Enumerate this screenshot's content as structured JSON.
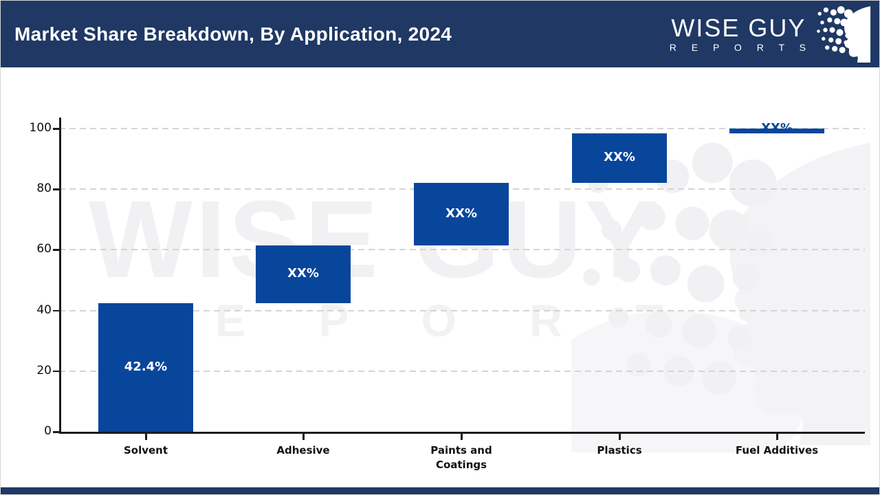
{
  "header": {
    "title": "Market Share Breakdown, By Application, 2024",
    "logo": {
      "line1": "WISE GUY",
      "line2": "R E P O R T S"
    }
  },
  "watermark": {
    "line1": "WISE GUY",
    "line2": "R E P O R T S"
  },
  "colors": {
    "header_bg": "#1f3864",
    "bar": "#08469c",
    "grid": "#d4d4d4",
    "axis": "#1c1c1c",
    "bar_label": "#ffffff",
    "footer_bg": "#1f3864"
  },
  "chart_data": {
    "type": "bar",
    "subtype": "waterfall",
    "title": "Market Share Breakdown, By Application, 2024",
    "categories": [
      "Solvent",
      "Adhesive",
      "Paints and\nCoatings",
      "Plastics",
      "Fuel Additives"
    ],
    "segments": [
      {
        "category": "Solvent",
        "start": 0,
        "end": 42.4,
        "label": "42.4%"
      },
      {
        "category": "Adhesive",
        "start": 42.4,
        "end": 61.5,
        "label": "XX%"
      },
      {
        "category": "Paints and Coatings",
        "start": 61.5,
        "end": 82.0,
        "label": "XX%"
      },
      {
        "category": "Plastics",
        "start": 82.0,
        "end": 98.5,
        "label": "XX%"
      },
      {
        "category": "Fuel Additives",
        "start": 98.5,
        "end": 100,
        "label": "XX%"
      }
    ],
    "y_ticks": [
      "0",
      "20",
      "40",
      "60",
      "80",
      "100"
    ],
    "ylim": [
      0,
      100
    ],
    "xlabel": "",
    "ylabel": "",
    "grid": "horizontal-dashed",
    "legend": "none"
  }
}
